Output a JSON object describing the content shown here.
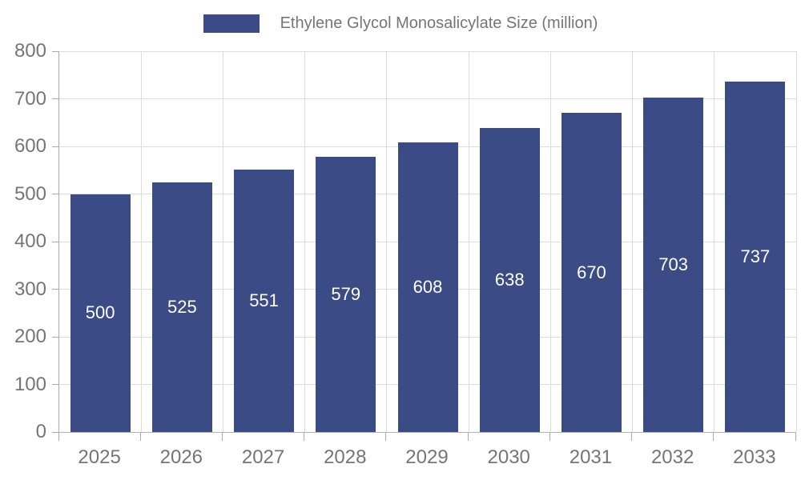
{
  "legend": {
    "label": "Ethylene Glycol Monosalicylate Size (million)"
  },
  "chart_data": {
    "type": "bar",
    "title": "Ethylene Glycol Monosalicylate Size (million)",
    "categories": [
      "2025",
      "2026",
      "2027",
      "2028",
      "2029",
      "2030",
      "2031",
      "2032",
      "2033"
    ],
    "values": [
      500,
      525,
      551,
      579,
      608,
      638,
      670,
      703,
      737
    ],
    "xlabel": "",
    "ylabel": "",
    "ylim": [
      0,
      800
    ],
    "yticks": [
      0,
      100,
      200,
      300,
      400,
      500,
      600,
      700,
      800
    ],
    "grid": true,
    "legend_position": "top-center",
    "colors": {
      "bar": "#3B4B85",
      "value_label": "#FFFFFF",
      "axis_text": "#757575",
      "gridline": "#DDDDDD",
      "axis_line": "#AAAAAA",
      "baseline": "#B3B3B3",
      "background": "#FFFFFF"
    }
  }
}
